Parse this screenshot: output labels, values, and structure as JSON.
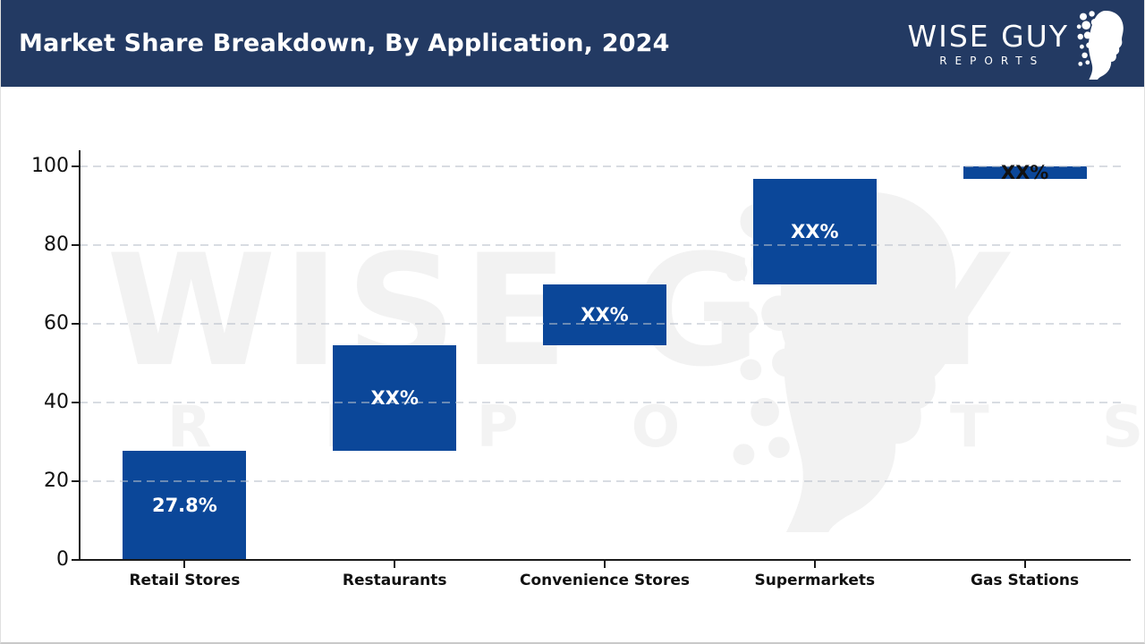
{
  "header": {
    "title": "Market Share Breakdown, By Application, 2024",
    "bg_color": "#233a63",
    "logo": {
      "line1": "WISE GUY",
      "line2": "REPORTS",
      "icon": "face-profile-dots-icon"
    }
  },
  "watermark": {
    "line1": "WISE GUY",
    "line2": "R E P O R T S"
  },
  "colors": {
    "bar": "#0b4799",
    "header_bg": "#233a63",
    "grid": "#d9d9d9",
    "axis": "#1a1a1a",
    "bar_label_light": "#ffffff",
    "bar_label_dark": "#111111"
  },
  "chart_data": {
    "type": "bar",
    "subtype": "waterfall",
    "title": "Market Share Breakdown, By Application, 2024",
    "categories": [
      "Retail Stores",
      "Restaurants",
      "Convenience Stores",
      "Supermarkets",
      "Gas Stations"
    ],
    "segments": [
      {
        "category": "Retail Stores",
        "start": 0,
        "end": 27.8,
        "label": "27.8%",
        "label_color": "#ffffff"
      },
      {
        "category": "Restaurants",
        "start": 27.8,
        "end": 54.6,
        "label": "XX%",
        "label_color": "#ffffff"
      },
      {
        "category": "Convenience Stores",
        "start": 54.6,
        "end": 70.0,
        "label": "XX%",
        "label_color": "#ffffff"
      },
      {
        "category": "Supermarkets",
        "start": 70.0,
        "end": 96.8,
        "label": "XX%",
        "label_color": "#ffffff"
      },
      {
        "category": "Gas Stations",
        "start": 96.8,
        "end": 100.0,
        "label": "XX%",
        "label_color": "#111111"
      }
    ],
    "xlabel": "",
    "ylabel": "",
    "y_ticks": [
      0,
      20,
      40,
      60,
      80,
      100
    ],
    "ylim": [
      0,
      105
    ],
    "grid": "horizontal-dashed",
    "legend": "none"
  }
}
